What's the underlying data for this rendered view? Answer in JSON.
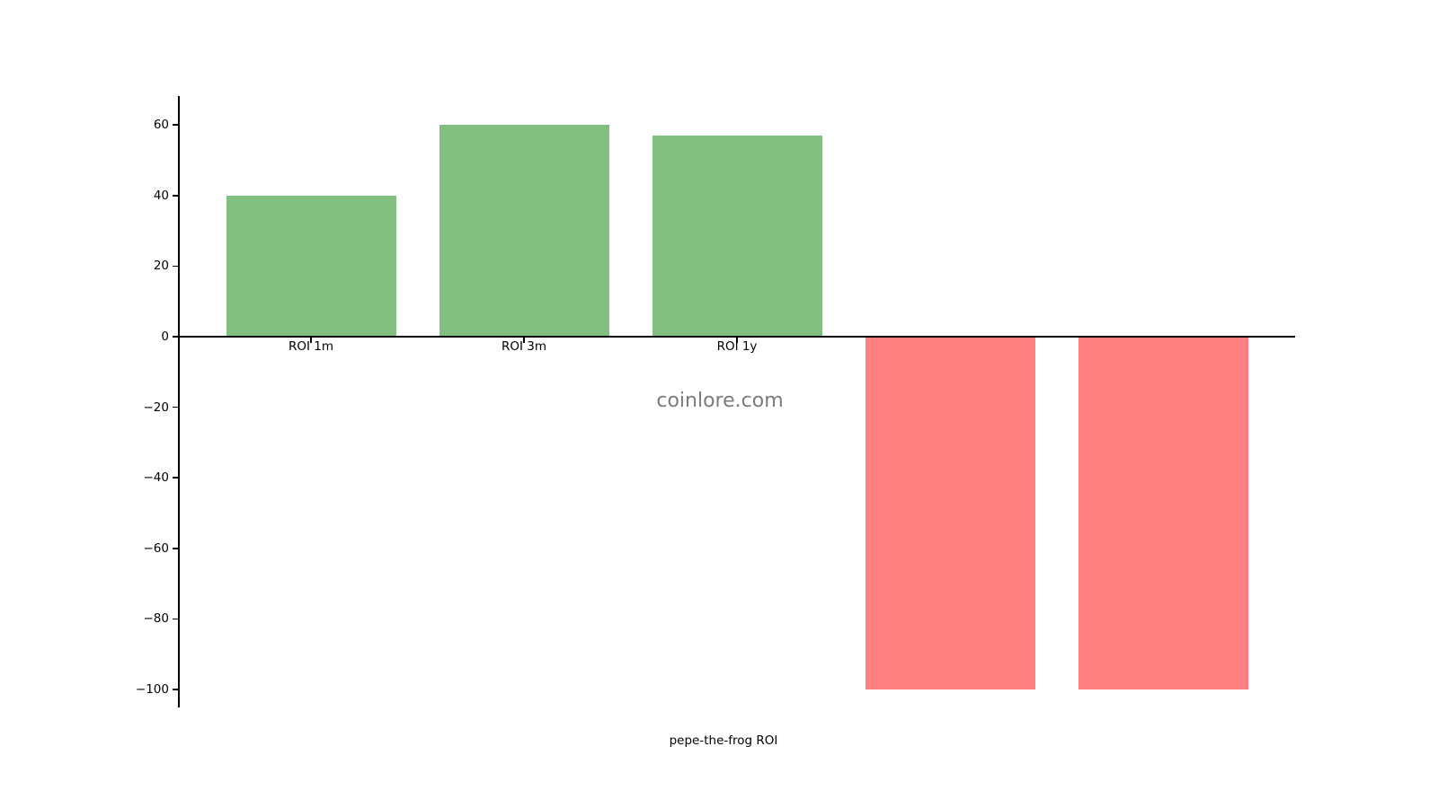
{
  "watermark": "coinlore.com",
  "colors": {
    "positive_bar": "#80bf80",
    "negative_bar": "#ff8080",
    "axis": "#000000",
    "watermark_text": "#7b7b7b",
    "background": "#ffffff"
  },
  "chart_data": {
    "type": "bar",
    "title": "pepe-the-frog ROI",
    "xlabel": "pepe-the-frog ROI",
    "ylabel": "",
    "categories": [
      "ROI 1m",
      "ROI 3m",
      "ROI 1y",
      "",
      ""
    ],
    "values": [
      40,
      60,
      57,
      -100,
      -100
    ],
    "bar_colors": [
      "#80bf80",
      "#80bf80",
      "#80bf80",
      "#ff8080",
      "#ff8080"
    ],
    "ylim": [
      -108,
      68
    ],
    "yticks": [
      60,
      40,
      20,
      0,
      -20,
      -40,
      -60,
      -80,
      -100
    ],
    "ytick_labels": [
      "60",
      "40",
      "20",
      "0",
      "−20",
      "−40",
      "−60",
      "−80",
      "−100"
    ],
    "grid": false,
    "legend": null,
    "watermark": "coinlore.com"
  }
}
